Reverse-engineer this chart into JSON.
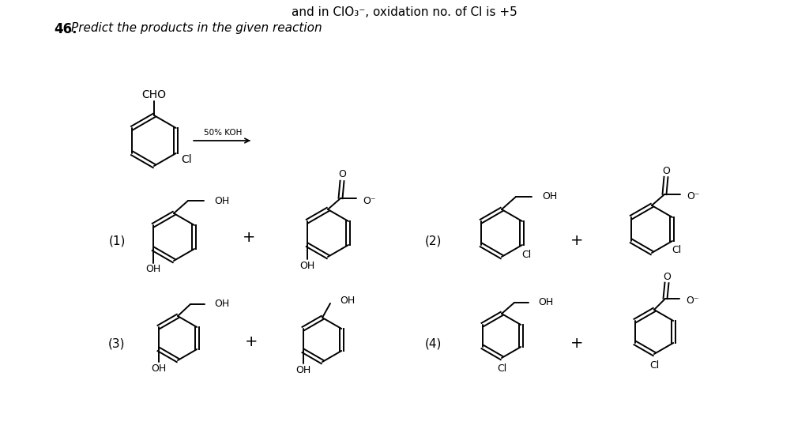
{
  "bg": "#ffffff",
  "tc": "#000000",
  "top_text": "and in ClO₃⁻, oxidation no. of Cl is +5",
  "q46": "46.",
  "q_text": "Predict the products in the given reaction",
  "reagent": "50% KOH"
}
